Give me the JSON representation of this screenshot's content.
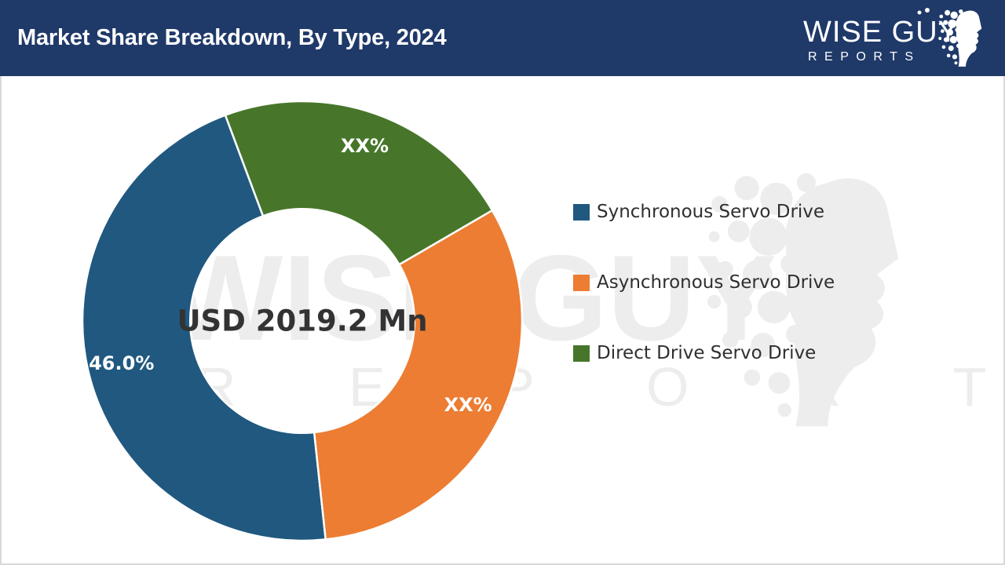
{
  "header": {
    "title": "Market Share Breakdown, By Type, 2024",
    "logo": {
      "name_line": "WISE GUY",
      "sub_line": "REPORTS"
    }
  },
  "chart_data": {
    "type": "pie",
    "subtype": "donut",
    "title": "Market Share Breakdown, By Type, 2024",
    "center_label": "USD 2019.2 Mn",
    "units": "percent share",
    "start_angle_deg": 110.5,
    "direction": "counterclockwise",
    "inner_radius_ratio": 0.51,
    "label_radius_ratio": 0.845,
    "legend_position": "right",
    "categories": [
      "Synchronous Servo Drive",
      "Asynchronous Servo Drive",
      "Direct Drive Servo Drive"
    ],
    "values": [
      46.0,
      31.7,
      22.3
    ],
    "slice_labels": [
      "46.0%",
      "XX%",
      "XX%"
    ],
    "colors": [
      "#20587F",
      "#EC7D33",
      "#47762A"
    ]
  },
  "legend": {
    "items": [
      {
        "label": "Synchronous Servo Drive",
        "color": "#20587F"
      },
      {
        "label": "Asynchronous Servo Drive",
        "color": "#EC7D33"
      },
      {
        "label": "Direct Drive Servo Drive",
        "color": "#47762A"
      }
    ]
  },
  "watermark": {
    "line1": "WISE GUY",
    "line2": "R E P O R T S"
  },
  "colors": {
    "header_bg": "#1F3969",
    "slice_label_text": "#FFFFFF",
    "center_text": "#333333",
    "legend_text": "#2F2F2F",
    "watermark_gray": "#EDEDED",
    "frame_border": "#D9D9D9"
  }
}
